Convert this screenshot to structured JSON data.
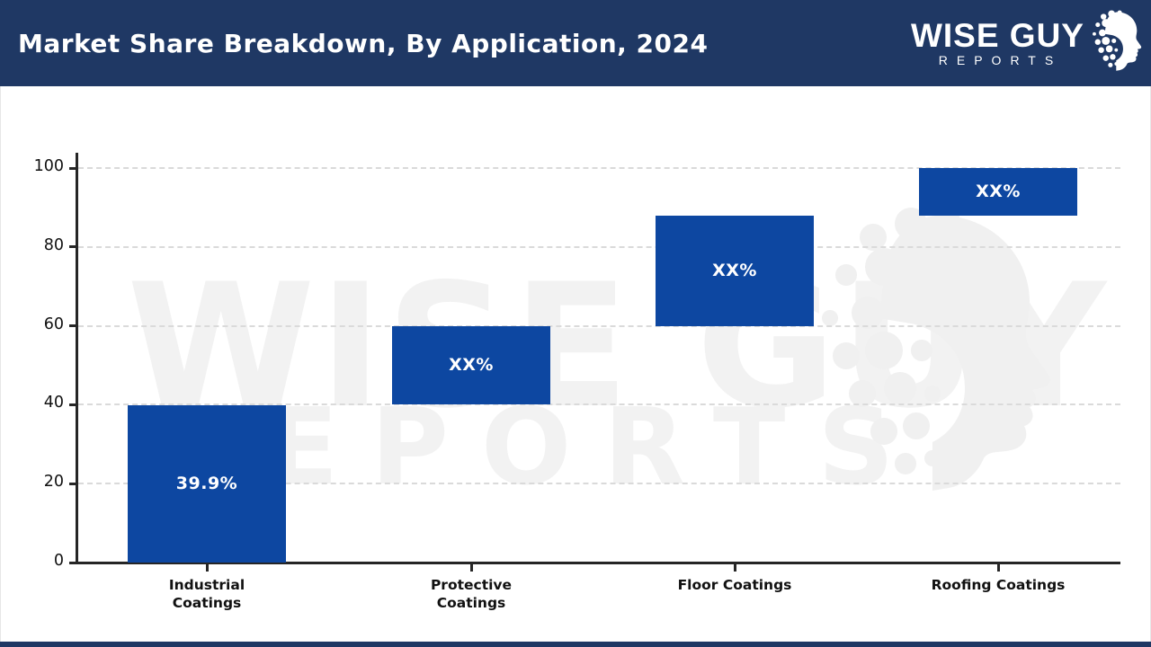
{
  "header": {
    "title": "Market Share Breakdown, By Application, 2024",
    "logo": {
      "line1": "WISE GUY",
      "line2": "REPORTS"
    }
  },
  "watermark": {
    "line1": "WISE GUY",
    "line2": "REPORTS"
  },
  "colors": {
    "header_navy": "#1f3864",
    "bar_blue": "#0d47a1",
    "grid_gray": "#dadada",
    "axis_dark": "#262626",
    "watermark_gray": "#f2f2f2"
  },
  "chart_data": {
    "type": "bar",
    "subtype": "floating-waterfall",
    "title": "Market Share Breakdown, By Application, 2024",
    "categories": [
      "Industrial\nCoatings",
      "Protective\nCoatings",
      "Floor Coatings",
      "Roofing Coatings"
    ],
    "segments": [
      {
        "category": "Industrial Coatings",
        "start": 0,
        "end": 39.9,
        "label": "39.9%"
      },
      {
        "category": "Protective Coatings",
        "start": 40,
        "end": 60,
        "label": "XX%"
      },
      {
        "category": "Floor Coatings",
        "start": 60,
        "end": 88,
        "label": "XX%"
      },
      {
        "category": "Roofing Coatings",
        "start": 88,
        "end": 100,
        "label": "XX%"
      }
    ],
    "xlabel": "",
    "ylabel": "",
    "ylim": [
      0,
      100
    ],
    "yticks": [
      0,
      20,
      40,
      60,
      80,
      100
    ],
    "grid": "horizontal-dashed",
    "legend": null,
    "bar_color": "#0d47a1",
    "bar_label_color": "#ffffff"
  }
}
